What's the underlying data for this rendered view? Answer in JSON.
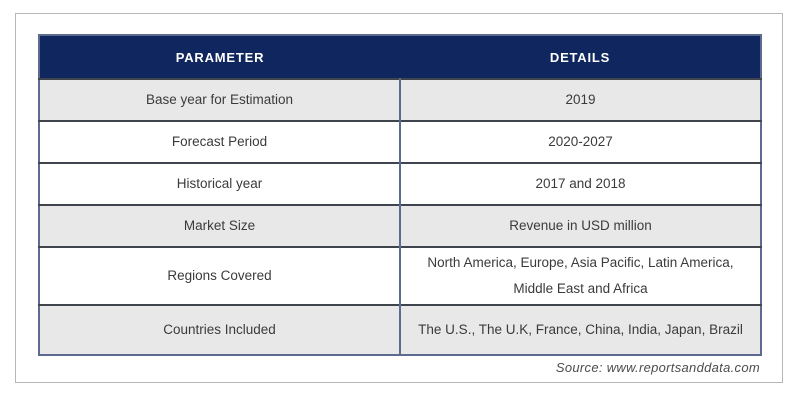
{
  "table": {
    "headers": [
      "PARAMETER",
      "DETAILS"
    ],
    "rows": [
      {
        "parameter": "Base year for Estimation",
        "details": "2019"
      },
      {
        "parameter": "Forecast Period",
        "details": "2020-2027"
      },
      {
        "parameter": "Historical year",
        "details": "2017 and 2018"
      },
      {
        "parameter": "Market Size",
        "details": "Revenue in USD million"
      },
      {
        "parameter": "Regions Covered",
        "details": "North America, Europe, Asia Pacific, Latin America, Middle East and Africa"
      },
      {
        "parameter": "Countries Included",
        "details": "The U.S., The U.K, France, China, India, Japan, Brazil"
      }
    ]
  },
  "source_text": "Source: www.reportsanddata.com",
  "colors": {
    "header_bg": "#10265e",
    "header_text": "#ffffff",
    "alt_row_bg": "#e8e8e8",
    "row_border": "#40444d",
    "column_divider": "#5d6b90",
    "frame_border": "#b7b7b7",
    "cell_text": "#3b3b3b",
    "source_text": "#4c4c4c"
  }
}
